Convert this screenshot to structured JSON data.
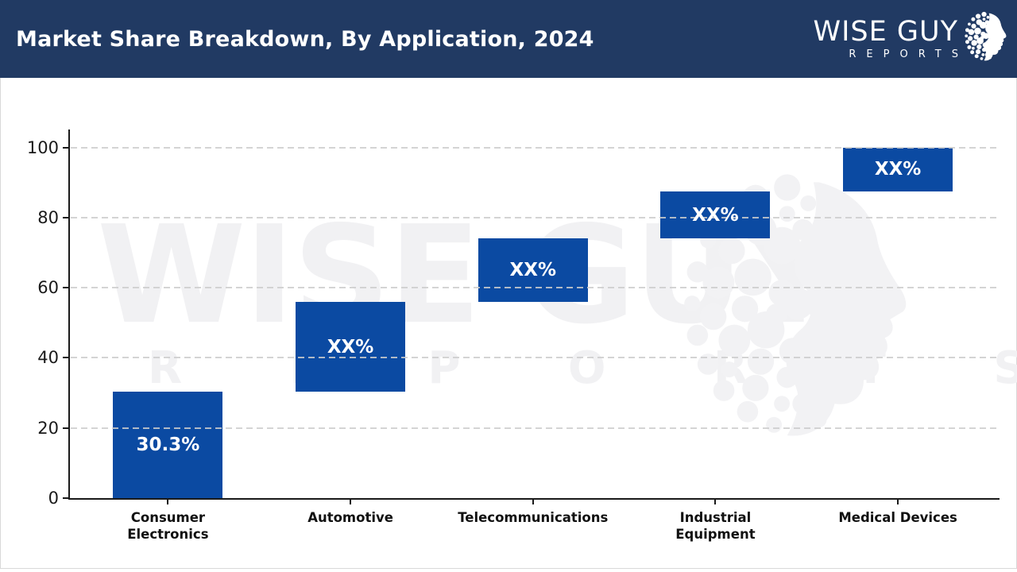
{
  "header": {
    "title": "Market Share Breakdown, By Application, 2024",
    "bg_color": "#213a63",
    "logo": {
      "brand_top": "WISE GUY",
      "brand_bottom": "REPORTS"
    }
  },
  "watermark": {
    "line1": "WISE GUY",
    "line2": "R E P O R T S"
  },
  "chart_data": {
    "type": "bar",
    "subtype": "waterfall-stacked-segments",
    "title": "Market Share Breakdown, By Application, 2024",
    "categories": [
      "Consumer\nElectronics",
      "Automotive",
      "Telecommunications",
      "Industrial\nEquipment",
      "Medical Devices"
    ],
    "series": [
      {
        "name": "Market share (%)",
        "starts": [
          0,
          30.3,
          56,
          74,
          87.5
        ],
        "values": [
          30.3,
          25.7,
          18,
          13.5,
          12.5
        ]
      }
    ],
    "bar_labels": [
      "30.3%",
      "XX%",
      "XX%",
      "XX%",
      "XX%"
    ],
    "xlabel": "",
    "ylabel": "",
    "ylim": [
      0,
      100
    ],
    "yticks": [
      0,
      20,
      40,
      60,
      80,
      100
    ],
    "grid": "horizontal-dashed",
    "legend": "none",
    "bar_color": "#0b4aa2",
    "bar_label_color": "#ffffff",
    "axis_color": "#1a1a1a",
    "grid_color": "#cdcdcd"
  }
}
